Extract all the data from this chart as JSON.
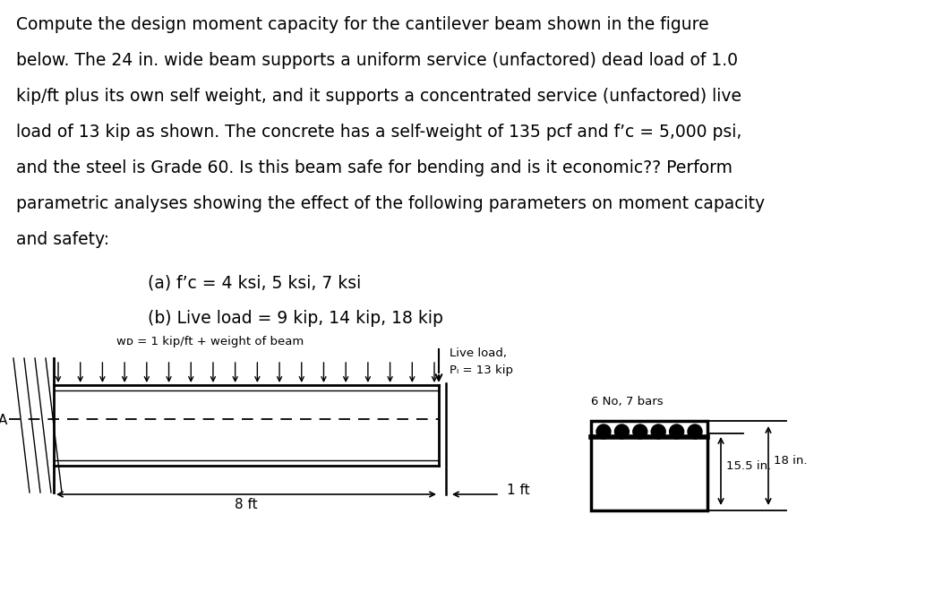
{
  "bg_color": "#ffffff",
  "text_color": "#000000",
  "paragraph": [
    "Compute the design moment capacity for the cantilever beam shown in the figure",
    "below. The 24 in. wide beam supports a uniform service (unfactored) dead load of 1.0",
    "kip/ft plus its own self weight, and it supports a concentrated service (unfactored) live",
    "load of 13 kip as shown. The concrete has a self-weight of 135 pcf and f’c = 5,000 psi,",
    "and the steel is Grade 60. Is this beam safe for bending and is it economic?? Perform",
    "parametric analyses showing the effect of the following parameters on moment capacity",
    "and safety:"
  ],
  "sub_items": [
    "(a) f’c = 4 ksi, 5 ksi, 7 ksi",
    "(b) Live load = 9 kip, 14 kip, 18 kip"
  ],
  "beam_label": "wᴅ = 1 kip/ft + weight of beam",
  "live_load_label_line1": "Live load,",
  "live_load_label_line2": "Pₗ = 13 kip",
  "dim_8ft": "8 ft",
  "dim_1ft": "1 ft",
  "section_label": "6 No, 7 bars",
  "dim_15_5": "15.5 in.",
  "dim_18": "18 in."
}
